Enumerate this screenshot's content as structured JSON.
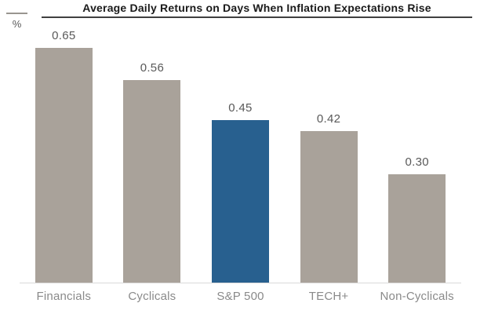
{
  "header": {
    "title": "Average Daily Returns on Days When Inflation Expectations Rise",
    "unit_label": "%"
  },
  "chart_data": {
    "type": "bar",
    "title": "Average Daily Returns on Days When Inflation Expectations Rise",
    "xlabel": "",
    "ylabel": "%",
    "categories": [
      "Financials",
      "Cyclicals",
      "S&P 500",
      "TECH+",
      "Non-Cyclicals"
    ],
    "values": [
      0.65,
      0.56,
      0.45,
      0.42,
      0.3
    ],
    "value_labels": [
      "0.65",
      "0.56",
      "0.45",
      "0.42",
      "0.30"
    ],
    "highlight_index": 2,
    "highlight_category": "S&P 500",
    "ylim": [
      0,
      0.72
    ],
    "grid": false,
    "legend": false,
    "colors": {
      "bar_default": "#A9A29A",
      "bar_highlight": "#28608F",
      "value_label": "#595959",
      "category_label": "#8A8A8A",
      "baseline": "#D9D9D9",
      "title_text": "#1A1A1A",
      "title_underline": "#404040",
      "background": "#FFFFFF"
    }
  }
}
